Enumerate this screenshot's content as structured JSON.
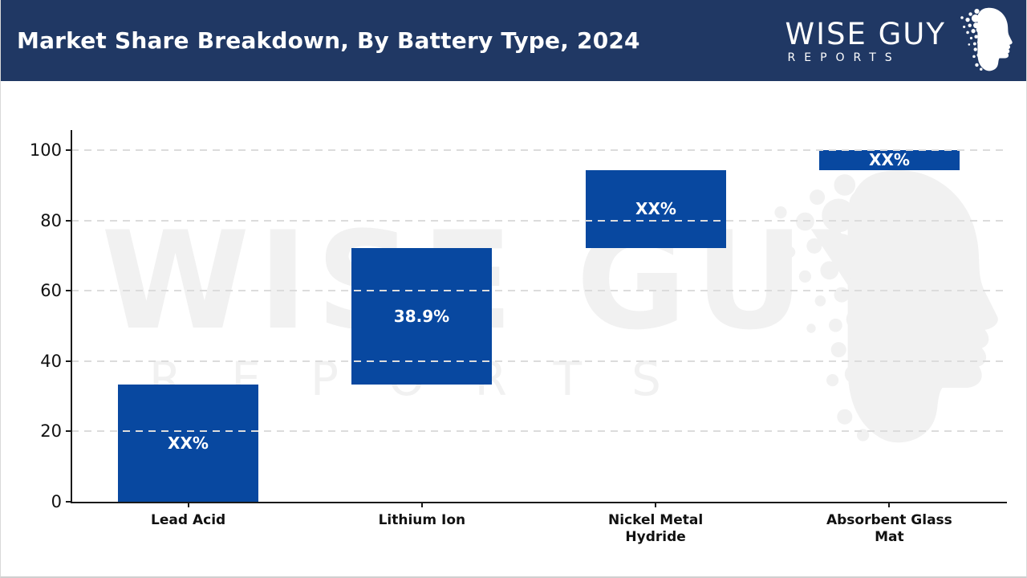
{
  "header": {
    "title": "Market Share Breakdown, By Battery Type, 2024",
    "logo": {
      "name": "WISE GUY",
      "sub": "REPORTS"
    }
  },
  "watermark": {
    "line1": "WISE GUY",
    "line2": "REPORTS"
  },
  "colors": {
    "header_bg": "#203864",
    "bar": "#0848a0",
    "grid": "#dcdcdc",
    "axis": "#1a1a1a",
    "bar_label": "#ffffff",
    "watermark": "#f1f1f1"
  },
  "chart_data": {
    "type": "bar",
    "subtype": "waterfall",
    "title": "Market Share Breakdown, By Battery Type, 2024",
    "categories": [
      "Lead Acid",
      "Lithium Ion",
      "Nickel Metal Hydride",
      "Absorbent Glass Mat"
    ],
    "segments": [
      {
        "category": "Lead Acid",
        "start": 0,
        "end": 33.3,
        "label": "XX%"
      },
      {
        "category": "Lithium Ion",
        "start": 33.3,
        "end": 72.2,
        "label": "38.9%"
      },
      {
        "category": "Nickel Metal Hydride",
        "start": 72.2,
        "end": 94.4,
        "label": "XX%"
      },
      {
        "category": "Absorbent Glass Mat",
        "start": 94.4,
        "end": 100,
        "label": "XX%"
      }
    ],
    "values_pct": [
      33.3,
      38.9,
      22.2,
      5.6
    ],
    "xlabel": "",
    "ylabel": "",
    "ylim": [
      0,
      100
    ],
    "yticks": [
      0,
      20,
      40,
      60,
      80,
      100
    ],
    "grid": "horizontal-dashed",
    "legend": "none"
  }
}
